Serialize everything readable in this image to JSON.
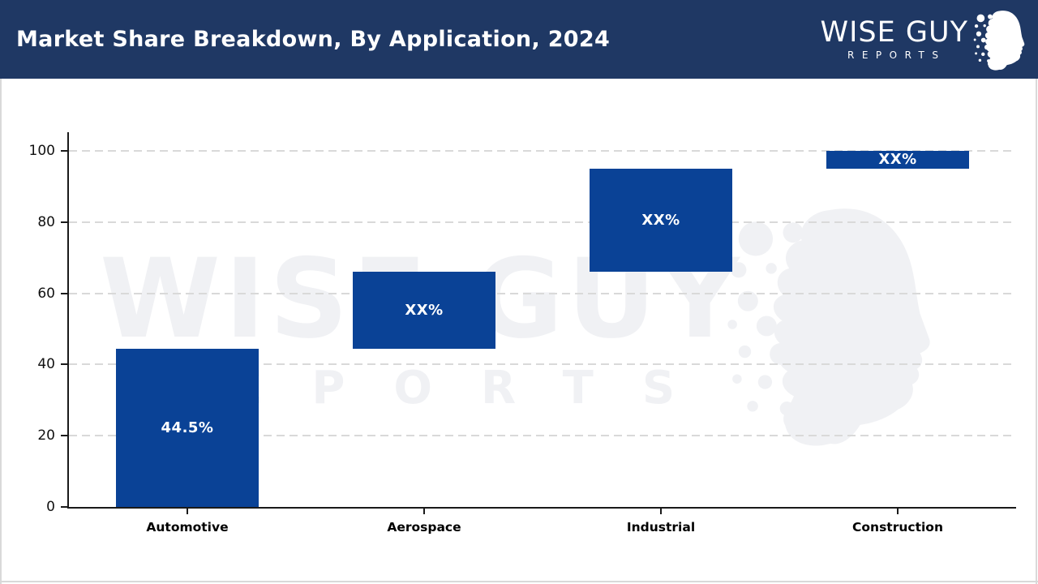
{
  "header": {
    "title": "Market Share Breakdown, By Application, 2024",
    "logo": {
      "line1": "WISE GUY",
      "line2": "REPORTS"
    }
  },
  "watermark": {
    "line1": "WISE GUY",
    "line2": "REPORTS"
  },
  "colors": {
    "header_bg": "#1f3864",
    "bar": "#0a4296",
    "grid": "#d9d9d9",
    "axis": "#1a1a1a",
    "bar_label": "#ffffff",
    "watermark": "#f0f1f4",
    "frame_border": "#d9d9d9"
  },
  "chart_data": {
    "type": "bar",
    "subtype": "waterfall",
    "title": "Market Share Breakdown, By Application, 2024",
    "categories": [
      "Automotive",
      "Aerospace",
      "Industrial",
      "Construction"
    ],
    "bars": [
      {
        "category": "Automotive",
        "start": 0,
        "end": 44.5,
        "label": "44.5%"
      },
      {
        "category": "Aerospace",
        "start": 44.5,
        "end": 66,
        "label": "XX%"
      },
      {
        "category": "Industrial",
        "start": 66,
        "end": 95,
        "label": "XX%"
      },
      {
        "category": "Construction",
        "start": 95,
        "end": 100,
        "label": "XX%"
      }
    ],
    "yticks": [
      0,
      20,
      40,
      60,
      80,
      100
    ],
    "ylim": [
      0,
      105
    ],
    "xlabel": "",
    "ylabel": "",
    "grid": "dashed-horizontal",
    "legend": "none"
  }
}
